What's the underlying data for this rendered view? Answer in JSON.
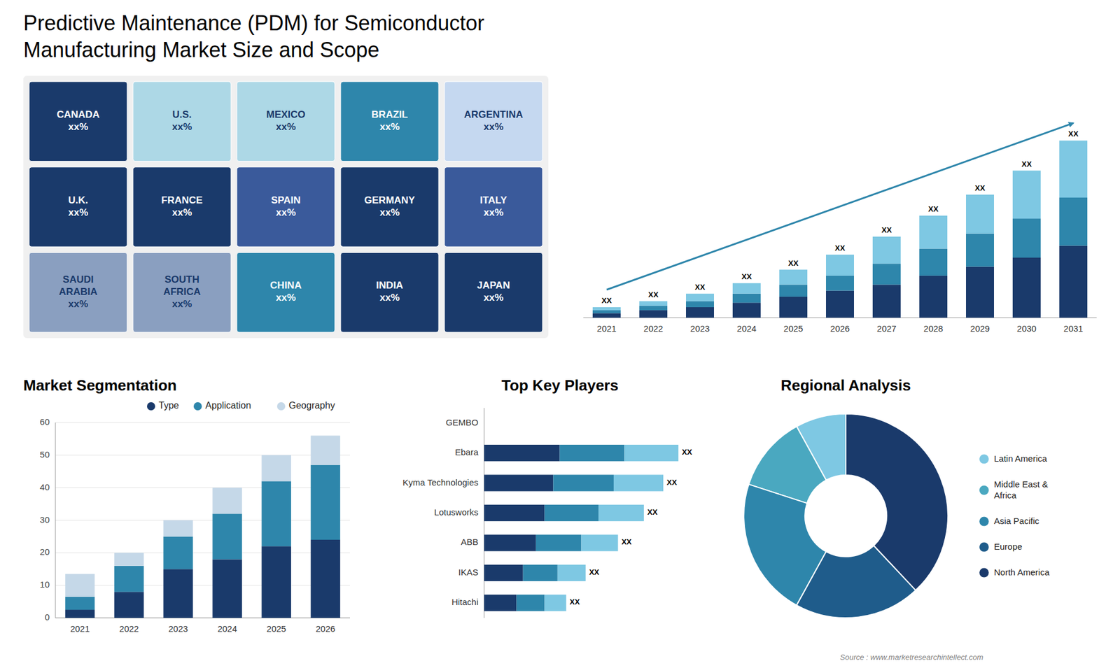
{
  "chart_data": [
    {
      "type": "map",
      "title": "Predictive Maintenance (PDM) for Semiconductor",
      "subtitle": "Manufacturing Market Size and Scope",
      "categories": [
        "CANADA\nxx%",
        "U.S.\nxx%",
        "MEXICO\nxx%",
        "BRAZIL\nxx%",
        "ARGENTINA\nxx%",
        "U.K.\nxx%",
        "FRANCE\nxx%",
        "SPAIN\nxx%",
        "GERMANY\nxx%",
        "ITALY\nxx%",
        "SAUDI\nARABIA\nxx%",
        "SOUTH\nAFRICA\nxx%",
        "CHINA\nxx%",
        "INDIA\nxx%",
        "JAPAN\nxx%"
      ],
      "colors": [
        "#1a3a6b",
        "#add8e6",
        "#add8e6",
        "#2e86ab",
        "#c5d8f0",
        "#1a3a6b",
        "#1a3a6b",
        "#3a5a9b",
        "#1a3a6b",
        "#3a5a9b",
        "#8a9fc0",
        "#8a9fc0",
        "#2e86ab",
        "#1a3a6b",
        "#1a3a6b"
      ]
    },
    {
      "type": "bar",
      "stacked": true,
      "categories": [
        "2021",
        "2022",
        "2023",
        "2024",
        "2025",
        "2026",
        "2027",
        "2028",
        "2029",
        "2030",
        "2031"
      ],
      "series": [
        {
          "color": "#1a3a6b",
          "values": [
            1.5,
            2.5,
            3.5,
            5,
            7,
            9,
            11,
            14,
            17,
            20,
            24
          ]
        },
        {
          "color": "#2e86ab",
          "values": [
            1,
            1.5,
            2,
            3,
            4,
            5,
            7,
            9,
            11,
            13,
            16
          ]
        },
        {
          "color": "#7ec8e3",
          "values": [
            1,
            1.5,
            2.5,
            3.5,
            5,
            7,
            9,
            11,
            13,
            16,
            19
          ]
        }
      ],
      "ylim": [
        0,
        76.7
      ],
      "tick_labels": "x",
      "annotations": [
        "XX",
        "XX",
        "XX",
        "XX",
        "XX",
        "XX",
        "XX",
        "XX",
        "XX",
        "XX",
        "XX"
      ]
    },
    {
      "type": "bar",
      "stacked": true,
      "title": "Market Segmentation",
      "categories": [
        "2021",
        "2022",
        "2023",
        "2024",
        "2025",
        "2026"
      ],
      "series": [
        {
          "name": "Type",
          "color": "#1a3a6b",
          "values": [
            2.5,
            8,
            15,
            18,
            22,
            24
          ]
        },
        {
          "name": "Application",
          "color": "#2e86ab",
          "values": [
            4,
            8,
            10,
            14,
            20,
            23
          ]
        },
        {
          "name": "Geography",
          "color": "#c5d8e8",
          "values": [
            7,
            4,
            5,
            8,
            8,
            9
          ]
        }
      ],
      "ylim": [
        0,
        60
      ],
      "yticks": [
        0,
        10,
        20,
        30,
        40,
        50,
        60
      ],
      "grid": true,
      "legend": "top"
    },
    {
      "type": "bar",
      "stacked": true,
      "orientation": "horizontal",
      "title": "Top Key Players",
      "categories": [
        "GEMBO",
        "Ebara",
        "Kyma Technologies",
        "Lotusworks",
        "ABB",
        "IKAS",
        "Hitachi"
      ],
      "series": [
        {
          "color": "#1a3a6b",
          "values": [
            0,
            3.5,
            3.2,
            2.8,
            2.4,
            1.8,
            1.5
          ]
        },
        {
          "color": "#2e86ab",
          "values": [
            0,
            3.0,
            2.8,
            2.5,
            2.1,
            1.6,
            1.3
          ]
        },
        {
          "color": "#7ec8e3",
          "values": [
            0,
            2.5,
            2.3,
            2.1,
            1.7,
            1.3,
            1.0
          ]
        }
      ],
      "xlim": [
        0,
        10
      ],
      "tick_labels": "y",
      "annotations": [
        "XX",
        "XX",
        "XX",
        "XX",
        "XX",
        "XX"
      ]
    },
    {
      "type": "pie",
      "title": "Regional Analysis",
      "categories": [
        "Latin America",
        "Middle East &\nAfrica",
        "Asia Pacific",
        "Europe",
        "North America"
      ],
      "values": [
        8,
        12,
        22,
        20,
        38
      ],
      "colors": [
        "#7ec8e3",
        "#4aa8c0",
        "#2e86ab",
        "#1f5c8b",
        "#1a3a6b"
      ],
      "legend": "right",
      "annotations": [
        "Source : www.marketresearchintellect.com"
      ]
    }
  ]
}
